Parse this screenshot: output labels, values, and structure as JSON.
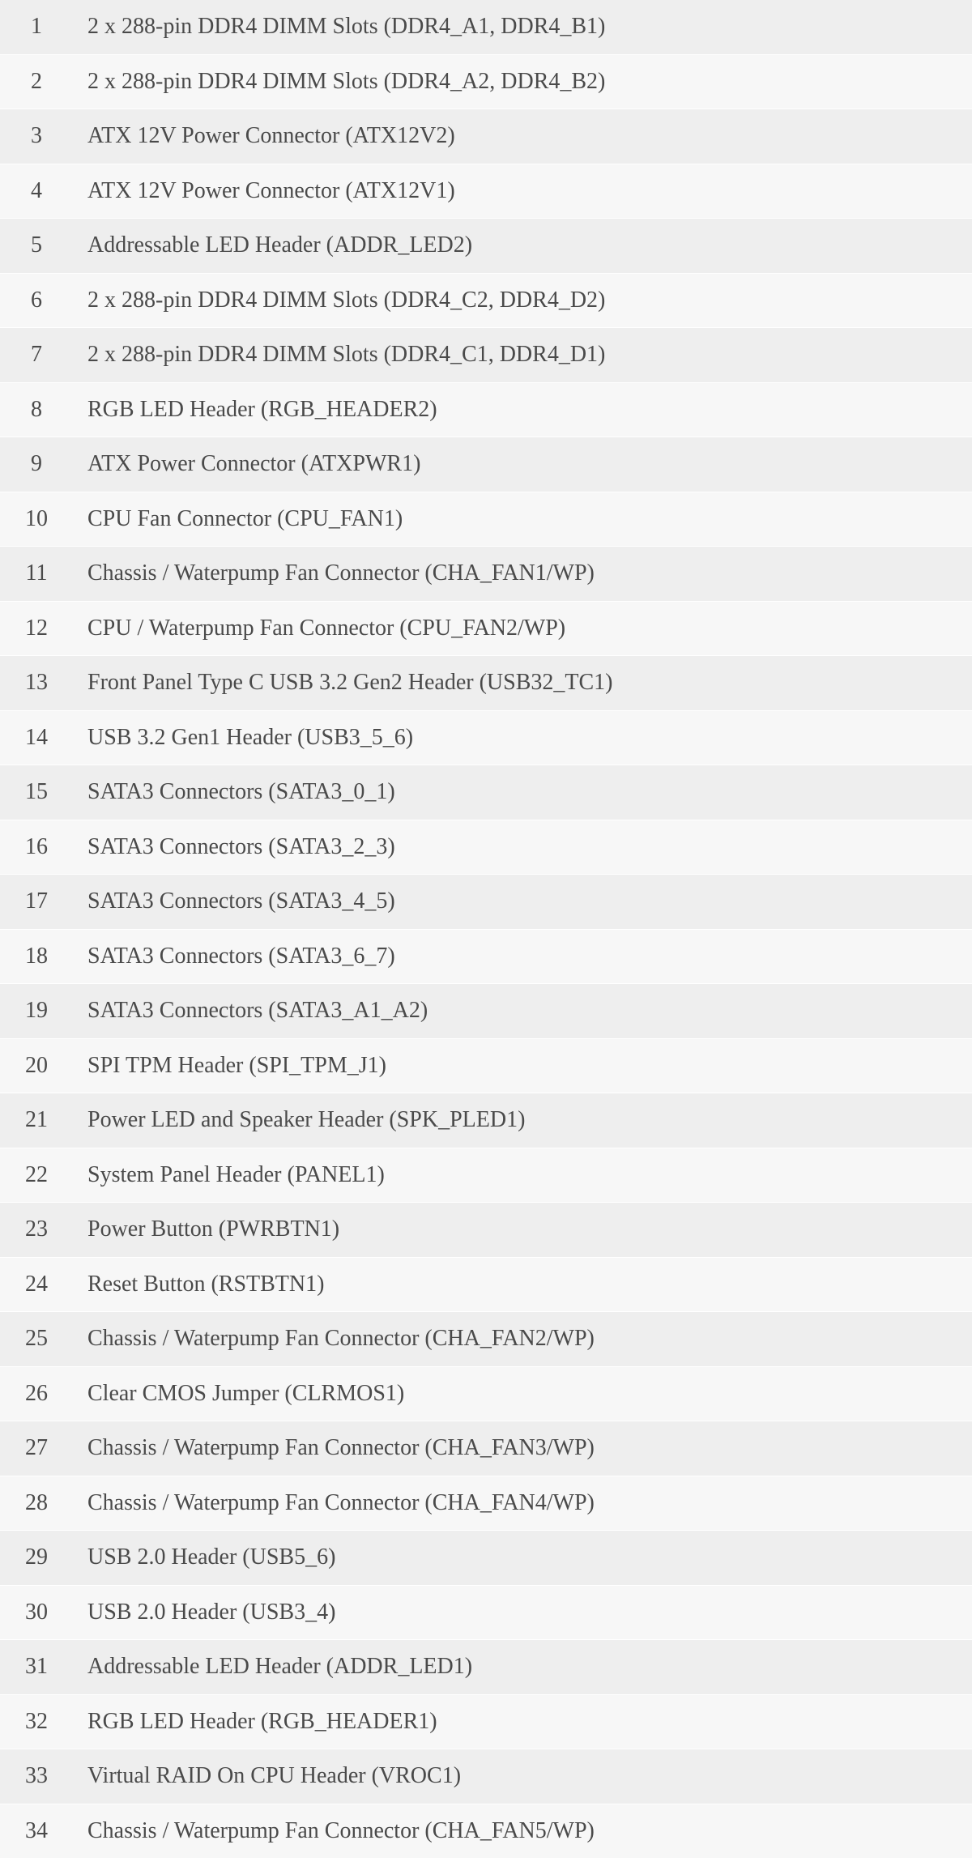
{
  "table": {
    "row_height": 67.5,
    "font_size": 28,
    "text_color": "#4a4a4a",
    "odd_row_bg": "#eeeeee",
    "even_row_bg": "#f7f7f7",
    "number_column_width": 90,
    "rows": [
      {
        "num": "1",
        "desc": "2 x 288-pin DDR4 DIMM Slots (DDR4_A1, DDR4_B1)"
      },
      {
        "num": "2",
        "desc": "2 x 288-pin DDR4 DIMM Slots (DDR4_A2, DDR4_B2)"
      },
      {
        "num": "3",
        "desc": "ATX 12V Power Connector (ATX12V2)"
      },
      {
        "num": "4",
        "desc": "ATX 12V Power Connector (ATX12V1)"
      },
      {
        "num": "5",
        "desc": "Addressable LED Header (ADDR_LED2)"
      },
      {
        "num": "6",
        "desc": "2 x 288-pin DDR4 DIMM Slots (DDR4_C2, DDR4_D2)"
      },
      {
        "num": "7",
        "desc": "2 x 288-pin DDR4 DIMM Slots (DDR4_C1, DDR4_D1)"
      },
      {
        "num": "8",
        "desc": "RGB LED Header (RGB_HEADER2)"
      },
      {
        "num": "9",
        "desc": "ATX Power Connector (ATXPWR1)"
      },
      {
        "num": "10",
        "desc": "CPU Fan Connector (CPU_FAN1)"
      },
      {
        "num": "11",
        "desc": "Chassis / Waterpump Fan Connector (CHA_FAN1/WP)"
      },
      {
        "num": "12",
        "desc": "CPU / Waterpump Fan Connector (CPU_FAN2/WP)"
      },
      {
        "num": "13",
        "desc": "Front Panel Type C USB 3.2 Gen2 Header (USB32_TC1)"
      },
      {
        "num": "14",
        "desc": "USB 3.2 Gen1 Header (USB3_5_6)"
      },
      {
        "num": "15",
        "desc": "SATA3 Connectors (SATA3_0_1)"
      },
      {
        "num": "16",
        "desc": "SATA3 Connectors (SATA3_2_3)"
      },
      {
        "num": "17",
        "desc": "SATA3 Connectors (SATA3_4_5)"
      },
      {
        "num": "18",
        "desc": "SATA3 Connectors (SATA3_6_7)"
      },
      {
        "num": "19",
        "desc": "SATA3 Connectors (SATA3_A1_A2)"
      },
      {
        "num": "20",
        "desc": "SPI TPM Header (SPI_TPM_J1)"
      },
      {
        "num": "21",
        "desc": "Power LED and Speaker Header (SPK_PLED1)"
      },
      {
        "num": "22",
        "desc": "System Panel Header (PANEL1)"
      },
      {
        "num": "23",
        "desc": "Power Button (PWRBTN1)"
      },
      {
        "num": "24",
        "desc": "Reset Button (RSTBTN1)"
      },
      {
        "num": "25",
        "desc": "Chassis / Waterpump Fan Connector (CHA_FAN2/WP)"
      },
      {
        "num": "26",
        "desc": "Clear CMOS Jumper (CLRMOS1)"
      },
      {
        "num": "27",
        "desc": "Chassis / Waterpump Fan Connector (CHA_FAN3/WP)"
      },
      {
        "num": "28",
        "desc": "Chassis / Waterpump Fan Connector (CHA_FAN4/WP)"
      },
      {
        "num": "29",
        "desc": "USB 2.0 Header (USB5_6)"
      },
      {
        "num": "30",
        "desc": "USB 2.0 Header (USB3_4)"
      },
      {
        "num": "31",
        "desc": "Addressable LED Header (ADDR_LED1)"
      },
      {
        "num": "32",
        "desc": "RGB LED Header (RGB_HEADER1)"
      },
      {
        "num": "33",
        "desc": "Virtual RAID On CPU Header (VROC1)"
      },
      {
        "num": "34",
        "desc": "Chassis / Waterpump Fan Connector (CHA_FAN5/WP)"
      }
    ]
  }
}
